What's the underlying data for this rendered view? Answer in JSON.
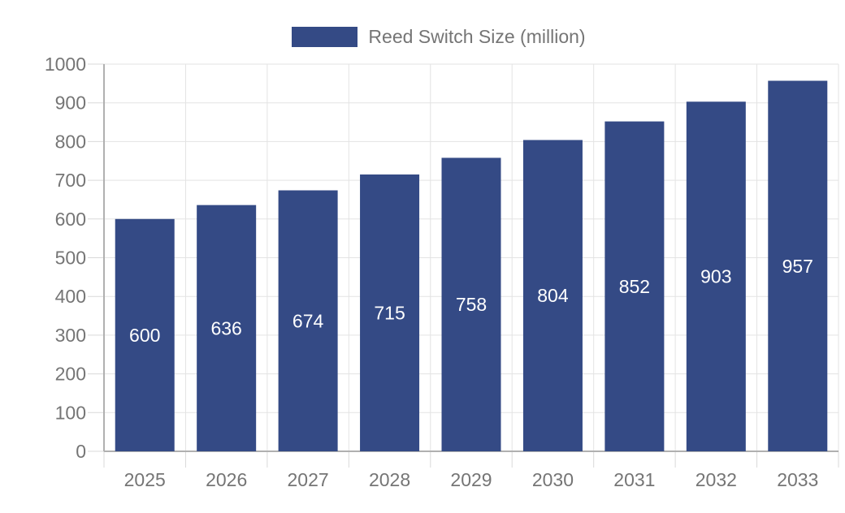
{
  "chart_data": {
    "type": "bar",
    "title": "Reed Switch Size (million)",
    "legend": {
      "label": "Reed Switch Size (million)",
      "position": "top-center"
    },
    "categories": [
      "2025",
      "2026",
      "2027",
      "2028",
      "2029",
      "2030",
      "2031",
      "2032",
      "2033"
    ],
    "series": [
      {
        "name": "Reed Switch Size (million)",
        "values": [
          600,
          636,
          674,
          715,
          758,
          804,
          852,
          903,
          957
        ]
      }
    ],
    "xlabel": "",
    "ylabel": "",
    "ylim": [
      0,
      1000
    ],
    "ytick_step": 100,
    "grid": true,
    "value_label_position": "inside-center",
    "colors": {
      "bar": "#344a85",
      "grid": "#e3e3e3",
      "tick": "#d9d9d9",
      "axis": "#b0b0b0",
      "text": "#757575",
      "value_label": "#ffffff",
      "background": "#ffffff"
    }
  }
}
